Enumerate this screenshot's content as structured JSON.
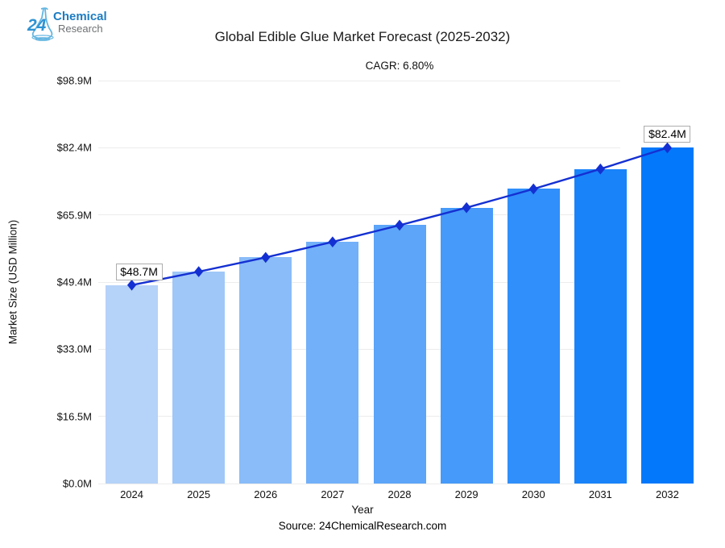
{
  "logo": {
    "number": "24",
    "line1": "Chemical",
    "line2": "Research",
    "number_color": "#2f93d2",
    "line1_color": "#1c7cc2",
    "line2_color": "#6d7073",
    "flask_color": "#63b5e0"
  },
  "chart_data": {
    "type": "bar+line",
    "title": "Global Edible Glue Market Forecast (2025-2032)",
    "subtitle": "CAGR: 6.80%",
    "xlabel": "Year",
    "ylabel": "Market Size (USD Million)",
    "categories": [
      "2024",
      "2025",
      "2026",
      "2027",
      "2028",
      "2029",
      "2030",
      "2031",
      "2032"
    ],
    "values": [
      48.7,
      52.0,
      55.5,
      59.3,
      63.4,
      67.7,
      72.3,
      77.2,
      82.4
    ],
    "bar_colors": [
      "#b5d2f8",
      "#9fc7f8",
      "#89bcf8",
      "#72b0f9",
      "#5ca5f9",
      "#469af9",
      "#308ffa",
      "#1983fa",
      "#0378fa"
    ],
    "line_color": "#1430d2",
    "marker_color": "#1430d2",
    "marker": "diamond",
    "ylim": [
      0,
      98.9
    ],
    "yticks": [
      0,
      16.5,
      33.0,
      49.4,
      65.9,
      82.4,
      98.9
    ],
    "ytick_labels": [
      "$0.0M",
      "$16.5M",
      "$33.0M",
      "$49.4M",
      "$65.9M",
      "$82.4M",
      "$98.9M"
    ],
    "grid": true,
    "legend": "none",
    "annotations": [
      {
        "index": 0,
        "label": "$48.7M",
        "dx": 9
      },
      {
        "index": 8,
        "label": "$82.4M",
        "dx": 0
      }
    ]
  },
  "footer": {
    "source": "Source: 24ChemicalResearch.com"
  }
}
